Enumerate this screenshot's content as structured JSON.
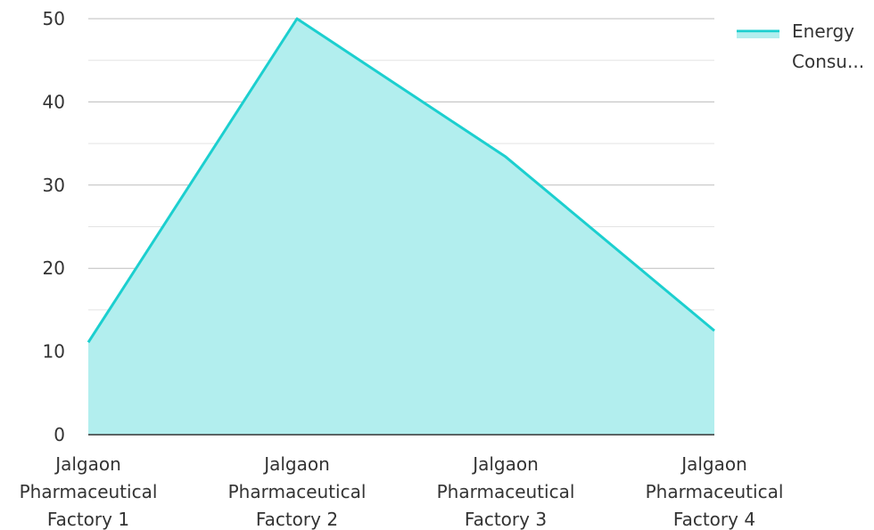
{
  "chart_data": {
    "type": "area",
    "categories": [
      [
        "Jalgaon",
        "Pharmaceutical",
        "Factory 1"
      ],
      [
        "Jalgaon",
        "Pharmaceutical",
        "Factory 2"
      ],
      [
        "Jalgaon",
        "Pharmaceutical",
        "Factory 3"
      ],
      [
        "Jalgaon",
        "Pharmaceutical",
        "Factory 4"
      ]
    ],
    "series": [
      {
        "name": "Energy Consu...",
        "legend_lines": [
          "Energy",
          "Consu..."
        ],
        "values": [
          11.1,
          50,
          33.4,
          12.5
        ]
      }
    ],
    "ylim": [
      0,
      50
    ],
    "yticks": [
      "0",
      "10",
      "20",
      "30",
      "40",
      "50"
    ],
    "grid": true,
    "legend_position": "top-right",
    "colors": {
      "line": "#1ccfcf",
      "fill": "#b2eeee",
      "grid_major": "#bdbdbd",
      "grid_minor": "#e3e3e3",
      "axis": "#333333"
    }
  }
}
